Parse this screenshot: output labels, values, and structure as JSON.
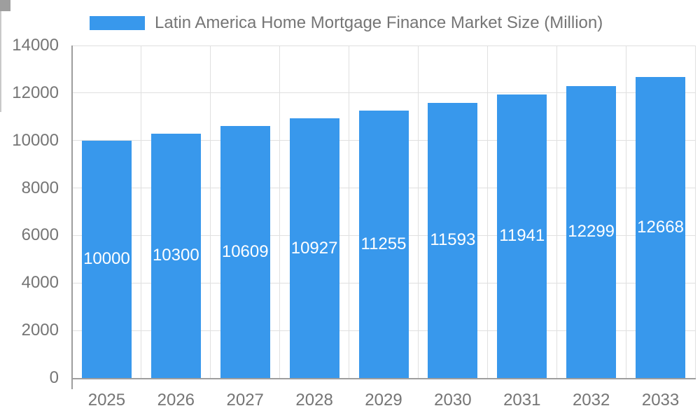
{
  "legend": {
    "label": "Latin America Home Mortgage Finance Market Size (Million)"
  },
  "chart_data": {
    "type": "bar",
    "title": "Latin America Home Mortgage Finance Market Size (Million)",
    "categories": [
      "2025",
      "2026",
      "2027",
      "2028",
      "2029",
      "2030",
      "2031",
      "2032",
      "2033"
    ],
    "values": [
      10000,
      10300,
      10609,
      10927,
      11255,
      11593,
      11941,
      12299,
      12668
    ],
    "series": [
      {
        "name": "Latin America Home Mortgage Finance Market Size (Million)",
        "values": [
          10000,
          10300,
          10609,
          10927,
          11255,
          11593,
          11941,
          12299,
          12668
        ]
      }
    ],
    "bar_value_labels": [
      "10000",
      "10300",
      "10609",
      "10927",
      "11255",
      "11593",
      "11941",
      "12299",
      "12668"
    ],
    "xlabel": "",
    "ylabel": "",
    "ylim": [
      0,
      14000
    ],
    "y_tick_step": 2000,
    "y_tick_labels": [
      "0",
      "2000",
      "4000",
      "6000",
      "8000",
      "10000",
      "12000",
      "14000"
    ],
    "grid": true,
    "legend_position": "top",
    "colors": {
      "bar": "#3898EC",
      "bar_label": "#FFFFFF",
      "grid_line": "#E0E0E0",
      "axis_line": "#9E9E9E",
      "x_tick": "#C9C9C9",
      "axis_text": "#757575",
      "background": "#FFFFFF"
    }
  }
}
